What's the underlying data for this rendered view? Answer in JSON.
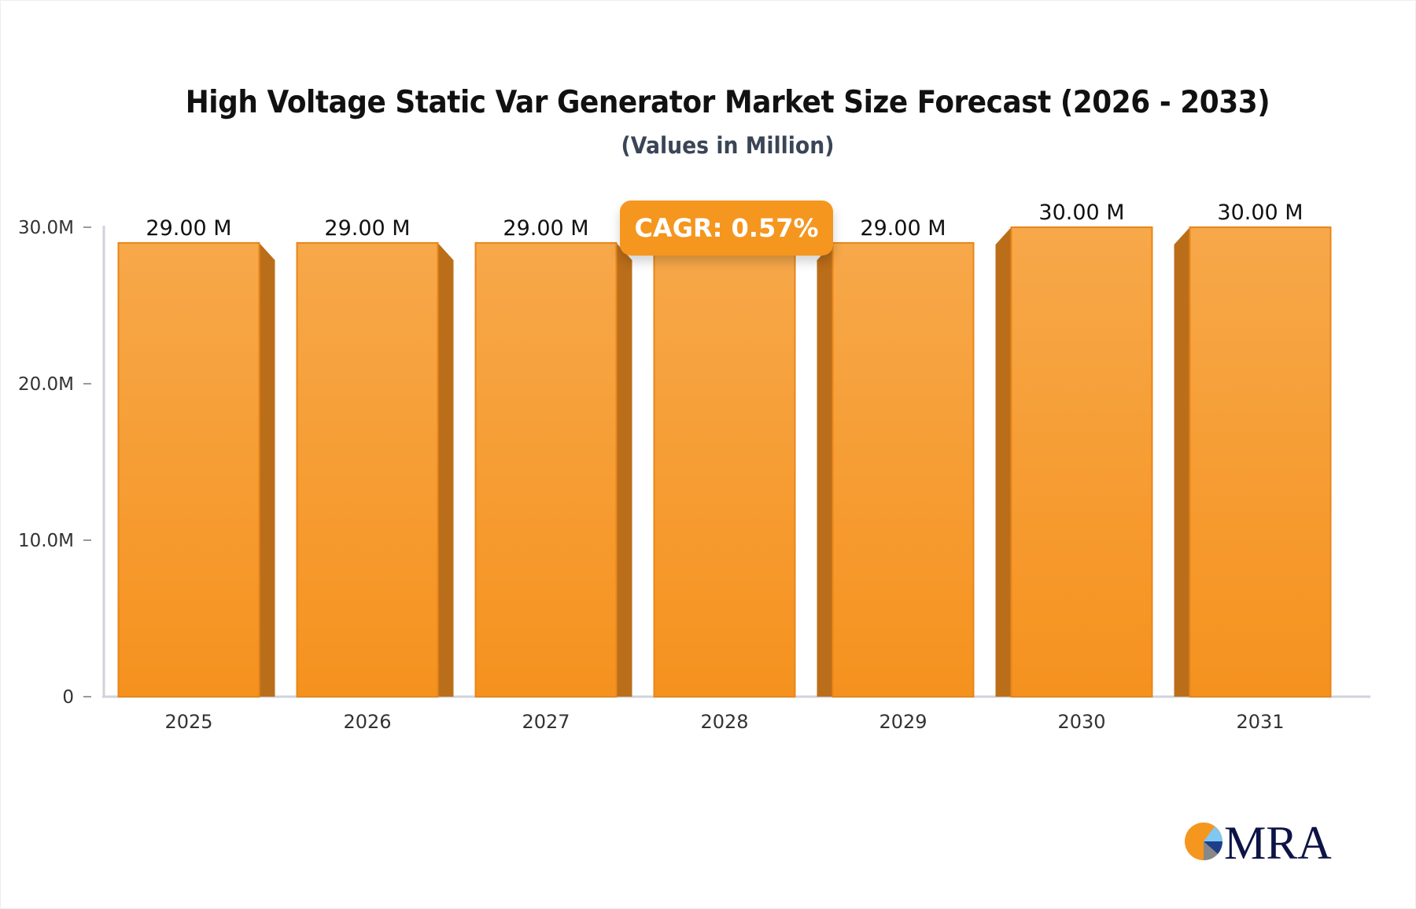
{
  "chart_data": {
    "type": "bar",
    "title": "High Voltage Static Var Generator Market Size Forecast (2026 - 2033)",
    "subtitle": "(Values in Million)",
    "categories": [
      "2025",
      "2026",
      "2027",
      "2028",
      "2029",
      "2030",
      "2031"
    ],
    "values": [
      29,
      29,
      29,
      29,
      29,
      30,
      30
    ],
    "data_labels": [
      "29.00 M",
      "29.00 M",
      "29.00 M",
      "",
      "29.00 M",
      "30.00 M",
      "30.00 M"
    ],
    "yticks": [
      0,
      10,
      20,
      30
    ],
    "ytick_labels": [
      "0",
      "10.0M",
      "20.0M",
      "30.0M"
    ],
    "ylim": [
      0,
      30
    ],
    "xlabel": "",
    "ylabel": "",
    "grid": false,
    "bar_color": "#f5961f",
    "annotation": "CAGR: 0.57%"
  },
  "logo": {
    "text": "MRA"
  }
}
